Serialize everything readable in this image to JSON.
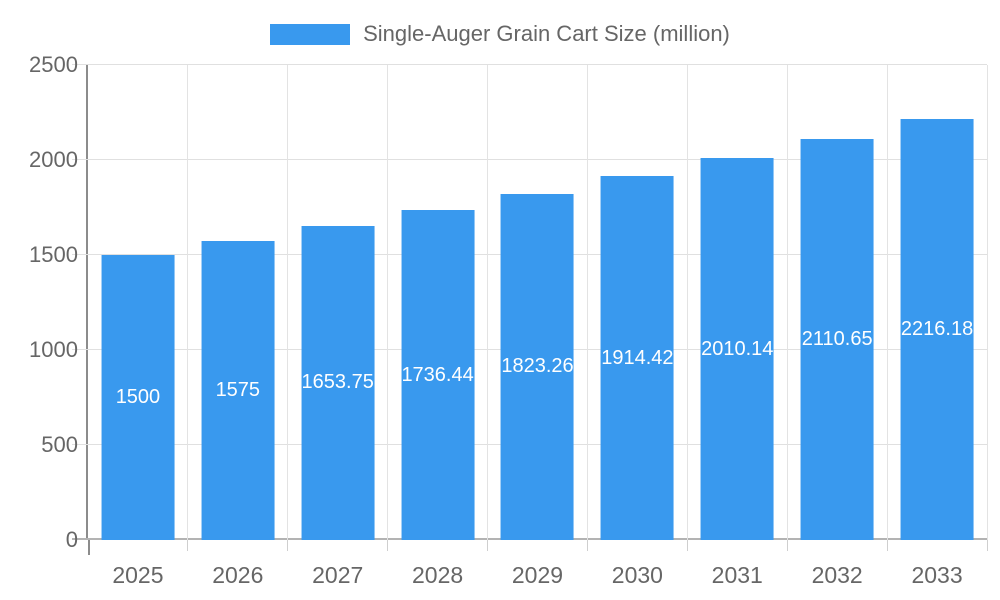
{
  "chart_data": {
    "type": "bar",
    "title": "Single-Auger Grain Cart Size (million)",
    "categories": [
      "2025",
      "2026",
      "2027",
      "2028",
      "2029",
      "2030",
      "2031",
      "2032",
      "2033"
    ],
    "values": [
      1500,
      1575,
      1653.75,
      1736.44,
      1823.26,
      1914.42,
      2010.14,
      2110.65,
      2216.18
    ],
    "xlabel": "",
    "ylabel": "",
    "ylim": [
      0,
      2500
    ],
    "yticks": [
      0,
      500,
      1000,
      1500,
      2000,
      2500
    ],
    "grid": true,
    "legend_position": "top-center",
    "colors": {
      "bar": "#3999EE",
      "bar_value_label": "#FFFFFF",
      "axis_text": "#666666",
      "gridline": "#E0E0E0",
      "y_axis_line": "#8C8C8C",
      "x_axis_line": "#B3B3B3"
    }
  }
}
